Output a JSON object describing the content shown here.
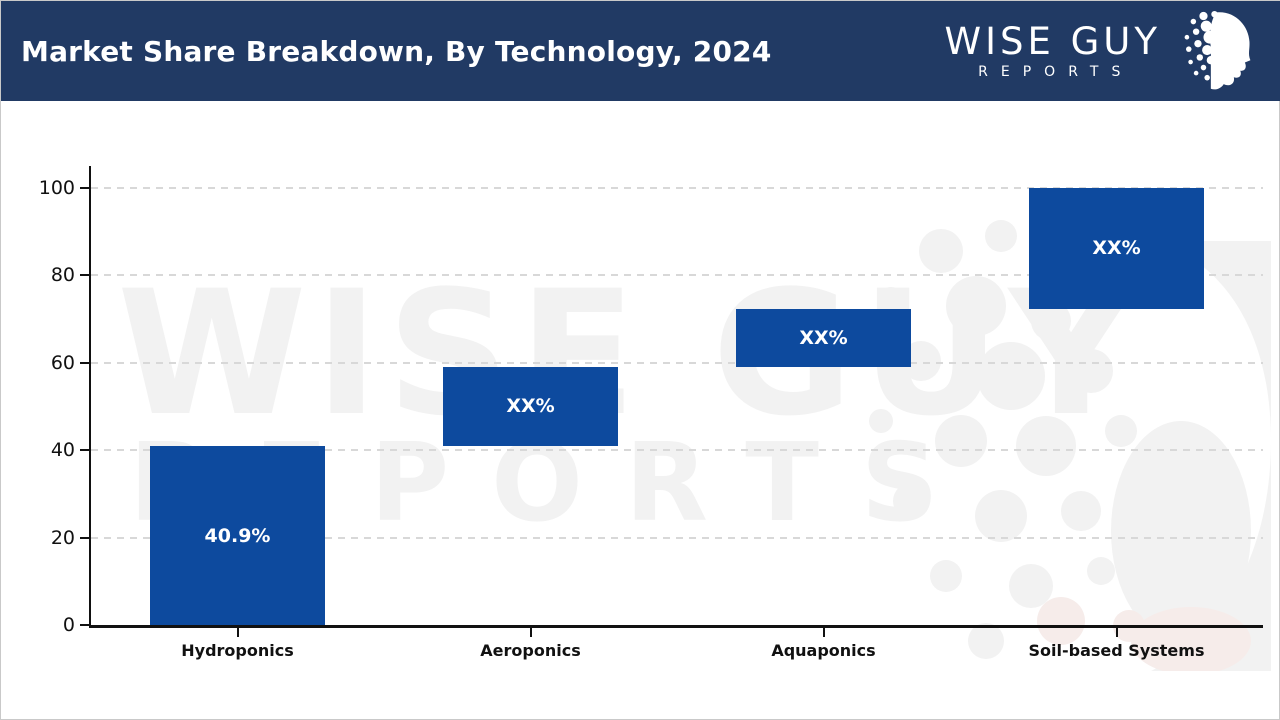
{
  "header": {
    "title": "Market Share Breakdown, By Technology, 2024",
    "logo": {
      "line1": "WISE GUY",
      "line2": "REPORTS"
    }
  },
  "watermark": {
    "line1": "WISE GUY",
    "line2": "REPORTS"
  },
  "colors": {
    "header_bg": "#213a64",
    "bar": "#0d4a9e",
    "bar_label": "#ffffff",
    "grid": "#d8d8d8",
    "axis": "#111111",
    "watermark": "#f2f2f2"
  },
  "chart_data": {
    "type": "bar",
    "subtype": "waterfall",
    "title": "Market Share Breakdown, By Technology, 2024",
    "xlabel": "",
    "ylabel": "",
    "categories": [
      "Hydroponics",
      "Aeroponics",
      "Aquaponics",
      "Soil-based Systems"
    ],
    "segments": [
      {
        "category": "Hydroponics",
        "start": 0,
        "end": 40.9,
        "label": "40.9%"
      },
      {
        "category": "Aeroponics",
        "start": 40.9,
        "end": 59.1,
        "label": "XX%"
      },
      {
        "category": "Aquaponics",
        "start": 59.1,
        "end": 72.3,
        "label": "XX%"
      },
      {
        "category": "Soil-based Systems",
        "start": 72.3,
        "end": 100,
        "label": "XX%"
      }
    ],
    "yticks": [
      0,
      20,
      40,
      60,
      80,
      100
    ],
    "ylim": [
      0,
      105
    ],
    "grid": "horizontal-dashed",
    "legend": "none"
  }
}
